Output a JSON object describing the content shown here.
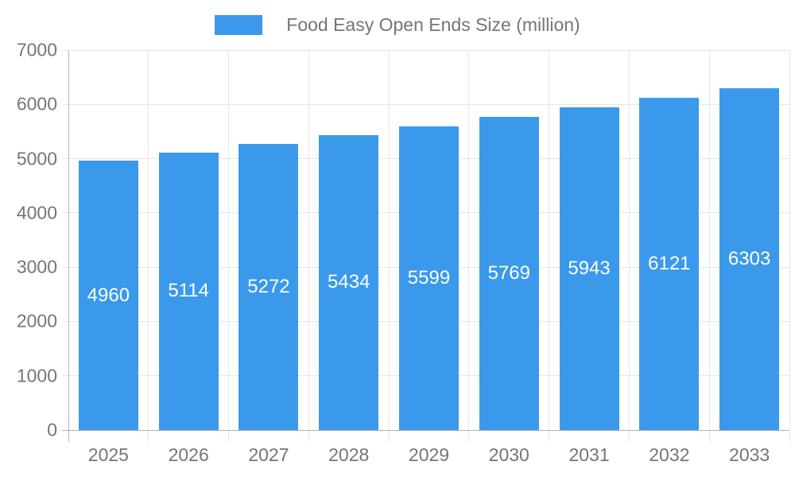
{
  "chart_data": {
    "type": "bar",
    "title": "Food Easy Open Ends Size (million)",
    "categories": [
      "2025",
      "2026",
      "2027",
      "2028",
      "2029",
      "2030",
      "2031",
      "2032",
      "2033"
    ],
    "values": [
      4960,
      5114,
      5272,
      5434,
      5599,
      5769,
      5943,
      6121,
      6303
    ],
    "value_labels": [
      "4960",
      "5114",
      "5272",
      "5434",
      "5599",
      "5769",
      "5943",
      "6121",
      "6303"
    ],
    "xlabel": "",
    "ylabel": "",
    "ylim": [
      0,
      7000
    ],
    "y_tick_step": 1000,
    "y_tick_labels": [
      "0",
      "1000",
      "2000",
      "3000",
      "4000",
      "5000",
      "6000",
      "7000"
    ],
    "grid": true,
    "legend_position": "top-center",
    "colors": {
      "bar": "#3b99ec",
      "bar_value_text": "#ffffff",
      "axis_text": "#757575",
      "gridline": "#e6e6e6",
      "axis_line": "#b3b3b3",
      "background": "#ffffff"
    }
  }
}
